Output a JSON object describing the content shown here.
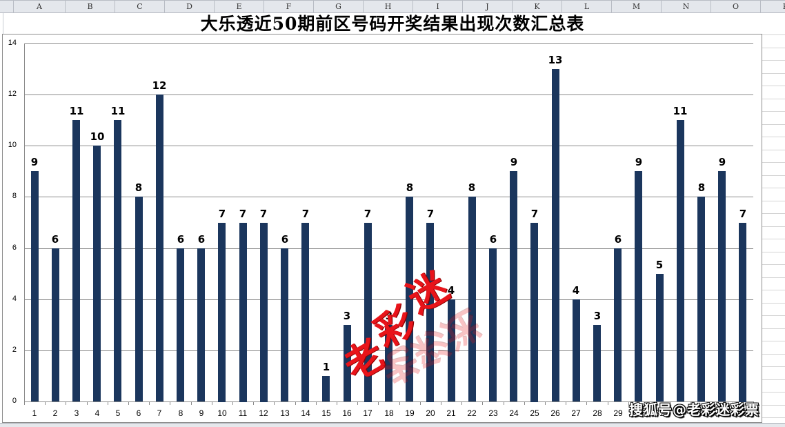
{
  "spreadsheet": {
    "column_headers": [
      "A",
      "B",
      "C",
      "D",
      "E",
      "F",
      "G",
      "H",
      "I",
      "J",
      "K",
      "L",
      "M",
      "N",
      "O",
      "P"
    ]
  },
  "chart_title": "大乐透近50期前区号码开奖结果出现次数汇总表",
  "watermarks": {
    "red_overlay": [
      "老",
      "彩",
      "迷"
    ],
    "source": "搜狐号@老彩迷彩票"
  },
  "chart_data": {
    "type": "bar",
    "title": "大乐透近50期前区号码开奖结果出现次数汇总表",
    "xlabel": "",
    "ylabel": "",
    "ylim": [
      0,
      14
    ],
    "yticks": [
      0,
      2,
      4,
      6,
      8,
      10,
      12,
      14
    ],
    "grid": true,
    "legend": null,
    "bar_color": "#1b365d",
    "categories": [
      "1",
      "2",
      "3",
      "4",
      "5",
      "6",
      "7",
      "8",
      "9",
      "10",
      "11",
      "12",
      "13",
      "14",
      "15",
      "16",
      "17",
      "18",
      "19",
      "20",
      "21",
      "22",
      "23",
      "24",
      "25",
      "26",
      "27",
      "28",
      "29",
      "30",
      "31",
      "32",
      "33",
      "34",
      "35"
    ],
    "values": [
      9,
      6,
      11,
      10,
      11,
      8,
      12,
      6,
      6,
      7,
      7,
      7,
      6,
      7,
      1,
      3,
      7,
      3,
      8,
      7,
      4,
      8,
      6,
      9,
      7,
      13,
      4,
      3,
      6,
      9,
      5,
      11,
      8,
      9,
      7
    ]
  }
}
